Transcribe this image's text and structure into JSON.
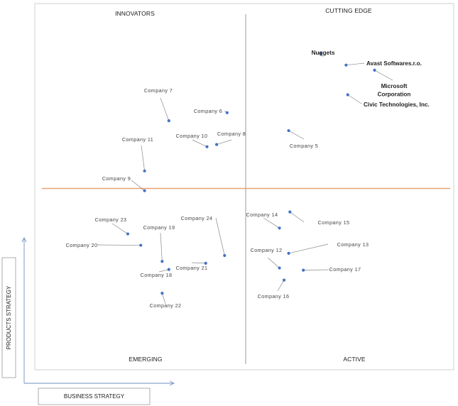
{
  "chart_data": {
    "type": "scatter",
    "title": "",
    "xlabel": "BUSINESS STRATEGY",
    "ylabel": "PRODUCTS STRATEGY",
    "xlim": [
      0,
      100
    ],
    "ylim": [
      0,
      100
    ],
    "quadrants": {
      "top_left": "INNOVATORS",
      "top_right": "CUTTING EDGE",
      "bottom_left": "EMERGING",
      "bottom_right": "ACTIVE"
    },
    "points": [
      {
        "name": "Nuggets",
        "x": 68.2,
        "y": 86.4,
        "major": true
      },
      {
        "name": "Avast Softwares.r.o.",
        "x": 74.3,
        "y": 83.2,
        "major": true
      },
      {
        "name": "Microsoft Corporation",
        "x": 81.1,
        "y": 81.8,
        "major": true
      },
      {
        "name": "Civic Technologies, Inc.",
        "x": 74.7,
        "y": 75.1,
        "major": true
      },
      {
        "name": "Company 5",
        "x": 60.6,
        "y": 65.3
      },
      {
        "name": "Company 6",
        "x": 45.9,
        "y": 70.2
      },
      {
        "name": "Company 7",
        "x": 32.0,
        "y": 68.0
      },
      {
        "name": "Company 8",
        "x": 43.4,
        "y": 61.5
      },
      {
        "name": "Company 10",
        "x": 41.1,
        "y": 60.9
      },
      {
        "name": "Company 11",
        "x": 26.2,
        "y": 54.3
      },
      {
        "name": "Company 9",
        "x": 26.2,
        "y": 48.9
      },
      {
        "name": "Company 23",
        "x": 22.2,
        "y": 37.1
      },
      {
        "name": "Company 19",
        "x": 30.4,
        "y": 29.6
      },
      {
        "name": "Company 20",
        "x": 25.3,
        "y": 34.0
      },
      {
        "name": "Company 24",
        "x": 45.3,
        "y": 31.2
      },
      {
        "name": "Company 21",
        "x": 40.8,
        "y": 29.1
      },
      {
        "name": "Company 18",
        "x": 32.0,
        "y": 27.4
      },
      {
        "name": "Company 22",
        "x": 30.4,
        "y": 20.9
      },
      {
        "name": "Company 14",
        "x": 58.4,
        "y": 38.7
      },
      {
        "name": "Company 15",
        "x": 60.9,
        "y": 43.1
      },
      {
        "name": "Company 13",
        "x": 60.6,
        "y": 31.8
      },
      {
        "name": "Company 12",
        "x": 58.4,
        "y": 27.8
      },
      {
        "name": "Company 17",
        "x": 64.1,
        "y": 27.2
      },
      {
        "name": "Company 16",
        "x": 59.5,
        "y": 24.5
      }
    ]
  }
}
